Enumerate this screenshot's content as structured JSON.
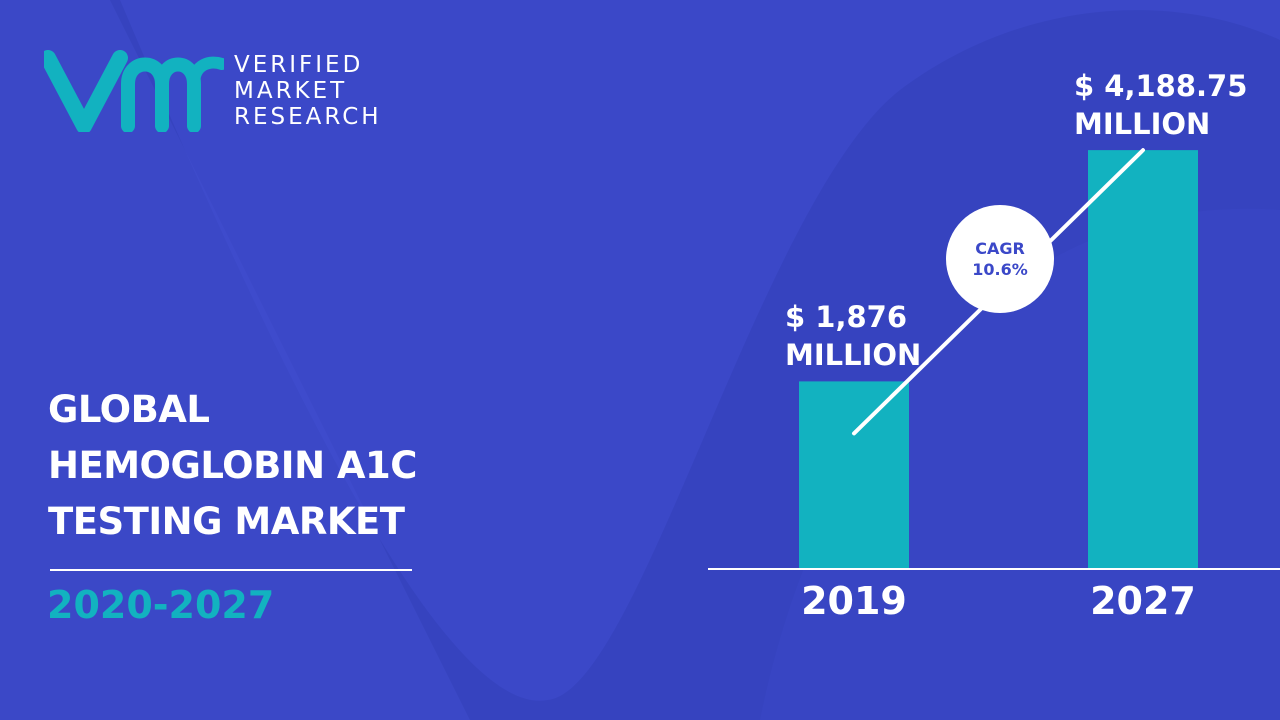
{
  "brand": {
    "logo_mark": "vmr",
    "lines": [
      "VERIFIED",
      "MARKET",
      "RESEARCH"
    ],
    "colors": {
      "mark": "#12b2c0",
      "text": "#ffffff"
    }
  },
  "title": {
    "lines": [
      "GLOBAL",
      "HEMOGLOBIN A1C",
      "TESTING MARKET"
    ]
  },
  "period": "2020-2027",
  "cagr": {
    "label": "CAGR",
    "value": "10.6%"
  },
  "colors": {
    "background": "#3b48c8",
    "background_shape": "#3340b8",
    "bar": "#12b2c0",
    "accent": "#12b2c0",
    "text": "#ffffff"
  },
  "chart_data": {
    "type": "bar",
    "categories": [
      "2019",
      "2027"
    ],
    "values": [
      1876,
      4188.75
    ],
    "value_labels": [
      [
        "$ 1,876",
        "MILLION"
      ],
      [
        "$ 4,188.75",
        "MILLION"
      ]
    ],
    "unit": "Million USD",
    "title": "",
    "xlabel": "",
    "ylabel": "",
    "ylim": [
      0,
      4600
    ],
    "grid": false,
    "legend": "none",
    "trend_line": true
  }
}
